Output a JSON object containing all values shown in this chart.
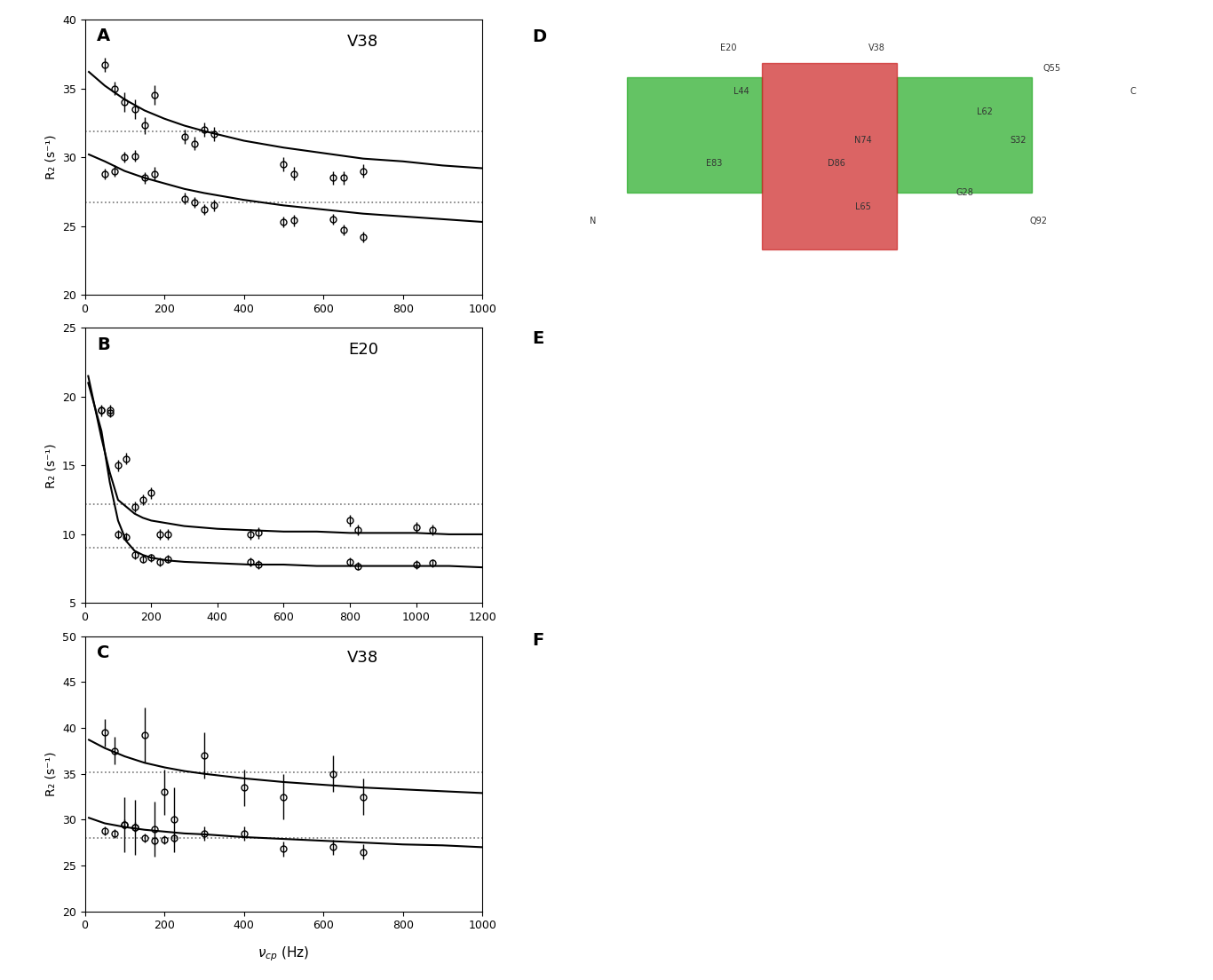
{
  "panel_A": {
    "title": "V38",
    "xlabel": "",
    "ylabel": "R₂ (s⁻¹)",
    "ylim": [
      20,
      40
    ],
    "yticks": [
      20,
      25,
      30,
      35,
      40
    ],
    "xlim": [
      0,
      1000
    ],
    "xticks": [
      0,
      200,
      400,
      600,
      800,
      1000
    ],
    "dotted_lines": [
      26.7,
      31.9
    ],
    "series1_x": [
      50,
      75,
      100,
      125,
      150,
      175,
      250,
      275,
      300,
      325,
      500,
      525,
      625,
      650,
      700
    ],
    "series1_y": [
      28.8,
      29.0,
      30.0,
      30.1,
      28.5,
      28.8,
      27.0,
      26.7,
      26.2,
      26.5,
      25.3,
      25.4,
      25.5,
      24.7,
      24.2
    ],
    "series1_ye": [
      0.4,
      0.4,
      0.4,
      0.4,
      0.4,
      0.5,
      0.4,
      0.4,
      0.4,
      0.4,
      0.4,
      0.4,
      0.4,
      0.4,
      0.4
    ],
    "series1_curve_x": [
      10,
      50,
      100,
      150,
      200,
      250,
      300,
      400,
      500,
      600,
      700,
      800,
      900,
      1000
    ],
    "series1_curve_y": [
      30.2,
      29.7,
      29.0,
      28.5,
      28.1,
      27.7,
      27.4,
      26.9,
      26.5,
      26.2,
      25.9,
      25.7,
      25.5,
      25.3
    ],
    "series2_x": [
      50,
      75,
      100,
      125,
      150,
      175,
      250,
      275,
      300,
      325,
      500,
      525,
      625,
      650,
      700
    ],
    "series2_y": [
      36.7,
      35.0,
      34.0,
      33.5,
      32.3,
      34.5,
      31.5,
      31.0,
      32.0,
      31.7,
      29.5,
      28.8,
      28.5,
      28.5,
      29.0
    ],
    "series2_ye": [
      0.5,
      0.5,
      0.7,
      0.7,
      0.6,
      0.7,
      0.5,
      0.5,
      0.5,
      0.5,
      0.5,
      0.5,
      0.5,
      0.5,
      0.5
    ],
    "series2_curve_x": [
      10,
      50,
      100,
      150,
      200,
      250,
      300,
      400,
      500,
      600,
      700,
      800,
      900,
      1000
    ],
    "series2_curve_y": [
      36.2,
      35.2,
      34.2,
      33.4,
      32.8,
      32.3,
      31.9,
      31.2,
      30.7,
      30.3,
      29.9,
      29.7,
      29.4,
      29.2
    ]
  },
  "panel_B": {
    "title": "E20",
    "xlabel": "",
    "ylabel": "R₂ (s⁻¹)",
    "ylim": [
      5,
      25
    ],
    "yticks": [
      5,
      10,
      15,
      20,
      25
    ],
    "xlim": [
      0,
      1200
    ],
    "xticks": [
      0,
      200,
      400,
      600,
      800,
      1000,
      1200
    ],
    "dotted_lines": [
      9.0,
      12.2
    ],
    "series1_x": [
      50,
      75,
      100,
      125,
      150,
      175,
      200,
      225,
      250,
      500,
      525,
      800,
      825,
      1000,
      1050
    ],
    "series1_y": [
      19.0,
      18.8,
      10.0,
      9.8,
      8.5,
      8.2,
      8.3,
      8.0,
      8.2,
      8.0,
      7.8,
      8.0,
      7.7,
      7.8,
      7.9
    ],
    "series1_ye": [
      0.3,
      0.3,
      0.3,
      0.3,
      0.3,
      0.3,
      0.3,
      0.3,
      0.3,
      0.3,
      0.3,
      0.3,
      0.3,
      0.3,
      0.3
    ],
    "series1_curve_x": [
      10,
      50,
      75,
      100,
      125,
      150,
      175,
      200,
      250,
      300,
      400,
      500,
      600,
      700,
      800,
      900,
      1000,
      1100,
      1200
    ],
    "series1_curve_y": [
      21.0,
      17.5,
      13.8,
      11.0,
      9.5,
      8.8,
      8.5,
      8.3,
      8.1,
      8.0,
      7.9,
      7.8,
      7.8,
      7.7,
      7.7,
      7.7,
      7.7,
      7.7,
      7.6
    ],
    "series2_x": [
      50,
      75,
      100,
      125,
      150,
      175,
      200,
      225,
      250,
      500,
      525,
      800,
      825,
      1000,
      1050
    ],
    "series2_y": [
      19.0,
      19.0,
      15.0,
      15.5,
      12.0,
      12.5,
      13.0,
      10.0,
      10.0,
      10.0,
      10.1,
      11.0,
      10.3,
      10.5,
      10.3
    ],
    "series2_ye": [
      0.4,
      0.4,
      0.4,
      0.4,
      0.4,
      0.4,
      0.4,
      0.4,
      0.4,
      0.4,
      0.4,
      0.4,
      0.4,
      0.4,
      0.4
    ],
    "series2_curve_x": [
      10,
      50,
      75,
      100,
      125,
      150,
      175,
      200,
      250,
      300,
      400,
      500,
      600,
      700,
      800,
      900,
      1000,
      1100,
      1200
    ],
    "series2_curve_y": [
      21.5,
      17.0,
      14.5,
      12.5,
      12.0,
      11.5,
      11.2,
      11.0,
      10.8,
      10.6,
      10.4,
      10.3,
      10.2,
      10.2,
      10.1,
      10.1,
      10.1,
      10.0,
      10.0
    ]
  },
  "panel_C": {
    "title": "V38",
    "xlabel": "ν_cp (Hz)",
    "ylabel": "R₂ (s⁻¹)",
    "ylim": [
      20,
      50
    ],
    "yticks": [
      20,
      25,
      30,
      35,
      40,
      45,
      50
    ],
    "xlim": [
      0,
      1000
    ],
    "xticks": [
      0,
      200,
      400,
      600,
      800,
      1000
    ],
    "dotted_lines": [
      28.0,
      35.2
    ],
    "series1_x": [
      50,
      75,
      100,
      125,
      150,
      175,
      200,
      225,
      300,
      400,
      500,
      625,
      700
    ],
    "series1_y": [
      28.8,
      28.5,
      29.5,
      29.2,
      28.0,
      27.7,
      27.8,
      28.0,
      28.5,
      28.5,
      26.8,
      27.0,
      26.5
    ],
    "series1_ye": [
      0.5,
      0.5,
      0.5,
      0.5,
      0.5,
      0.5,
      0.5,
      0.5,
      0.8,
      0.8,
      0.8,
      0.8,
      0.8
    ],
    "series1_curve_x": [
      10,
      50,
      100,
      150,
      200,
      250,
      300,
      400,
      500,
      600,
      700,
      800,
      900,
      1000
    ],
    "series1_curve_y": [
      30.2,
      29.6,
      29.2,
      28.9,
      28.7,
      28.5,
      28.4,
      28.1,
      27.9,
      27.7,
      27.5,
      27.3,
      27.2,
      27.0
    ],
    "series2_x": [
      50,
      75,
      100,
      125,
      150,
      175,
      200,
      225,
      300,
      400,
      500,
      625,
      700
    ],
    "series2_y": [
      39.5,
      37.5,
      29.5,
      29.2,
      39.2,
      29.0,
      33.0,
      30.0,
      37.0,
      33.5,
      32.5,
      35.0,
      32.5
    ],
    "series2_ye": [
      1.5,
      1.5,
      3.0,
      3.0,
      3.0,
      3.0,
      2.5,
      3.5,
      2.5,
      2.0,
      2.5,
      2.0,
      2.0
    ],
    "series2_curve_x": [
      10,
      50,
      100,
      150,
      200,
      250,
      300,
      400,
      500,
      600,
      700,
      800,
      900,
      1000
    ],
    "series2_curve_y": [
      38.7,
      37.8,
      36.9,
      36.2,
      35.7,
      35.3,
      35.0,
      34.5,
      34.1,
      33.8,
      33.5,
      33.3,
      33.1,
      32.9
    ]
  },
  "right_panels_placeholder": true,
  "bg_color": "#ffffff",
  "line_color": "#000000",
  "marker_color": "#000000",
  "marker_facecolor": "none",
  "dotted_color": "#555555"
}
